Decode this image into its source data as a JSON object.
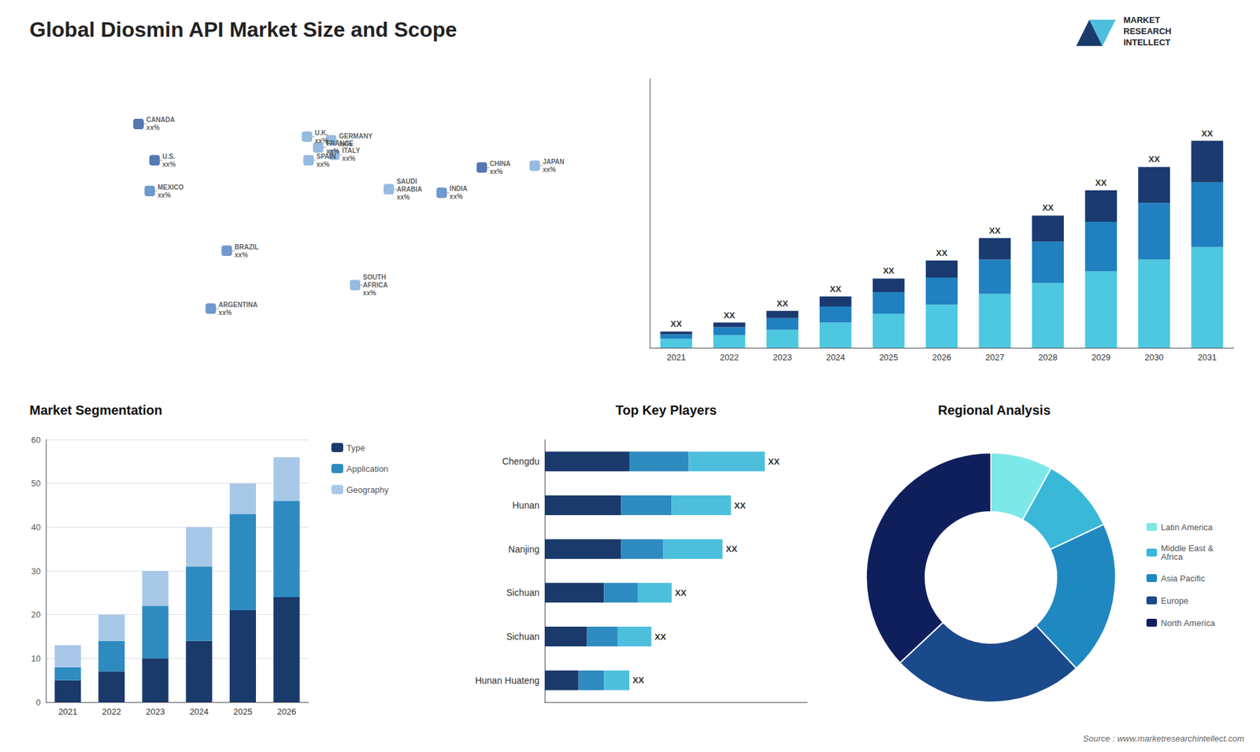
{
  "title": "Global Diosmin API Market Size and Scope",
  "annotations": [
    "MARKET",
    "RESEARCH",
    "INTELLECT",
    "Source : www.marketresearchintellect.com"
  ],
  "chart_data": [
    {
      "type": "map",
      "xlim": [
        -180,
        180
      ],
      "ylim": [
        -60,
        85
      ],
      "tick_labels": false,
      "annotations": [
        {
          "text": "CANADA\nxx%",
          "x": -110,
          "y": 60,
          "color": "#2a55a0"
        },
        {
          "text": "U.S.\nxx%",
          "x": -100,
          "y": 40,
          "color": "#2a55a0"
        },
        {
          "text": "MEXICO\nxx%",
          "x": -103,
          "y": 23,
          "color": "#4a80c0"
        },
        {
          "text": "BRAZIL\nxx%",
          "x": -55,
          "y": -10,
          "color": "#4a80c0"
        },
        {
          "text": "ARGENTINA\nxx%",
          "x": -65,
          "y": -42,
          "color": "#4a80c0"
        },
        {
          "text": "U.K.\nxx%",
          "x": -5,
          "y": 53,
          "color": "#7aaad8"
        },
        {
          "text": "FRANCE\nxx%",
          "x": 2,
          "y": 47,
          "color": "#7aaad8"
        },
        {
          "text": "SPAIN\nxx%",
          "x": -4,
          "y": 40,
          "color": "#7aaad8"
        },
        {
          "text": "GERMANY\nxx%",
          "x": 10,
          "y": 51,
          "color": "#7aaad8"
        },
        {
          "text": "ITALY\nxx%",
          "x": 12,
          "y": 43,
          "color": "#7aaad8"
        },
        {
          "text": "SAUDI\nARABIA\nxx%",
          "x": 46,
          "y": 24,
          "color": "#7aaad8"
        },
        {
          "text": "SOUTH\nAFRICA\nxx%",
          "x": 25,
          "y": -29,
          "color": "#7aaad8"
        },
        {
          "text": "CHINA\nxx%",
          "x": 104,
          "y": 36,
          "color": "#2a55a0"
        },
        {
          "text": "INDIA\nxx%",
          "x": 79,
          "y": 22,
          "color": "#4a80c0"
        },
        {
          "text": "JAPAN\nxx%",
          "x": 137,
          "y": 37,
          "color": "#7aaad8"
        }
      ]
    },
    {
      "type": "bar",
      "stacked": true,
      "categories": [
        "2021",
        "2022",
        "2023",
        "2024",
        "2025",
        "2026",
        "2027",
        "2028",
        "2029",
        "2030",
        "2031"
      ],
      "series": [
        {
          "color": "#4dc8e0",
          "values": [
            1.0,
            1.4,
            2.0,
            2.8,
            3.8,
            4.8,
            6.0,
            7.2,
            8.5,
            9.8,
            11.2
          ]
        },
        {
          "color": "#2080c0",
          "values": [
            0.5,
            0.9,
            1.3,
            1.8,
            2.4,
            3.0,
            3.8,
            4.6,
            5.5,
            6.3,
            7.2
          ]
        },
        {
          "color": "#1a3a70",
          "values": [
            0.3,
            0.5,
            0.8,
            1.1,
            1.5,
            1.9,
            2.4,
            2.9,
            3.5,
            4.0,
            4.6
          ]
        }
      ],
      "annotations": [
        "XX",
        "XX",
        "XX",
        "XX",
        "XX",
        "XX",
        "XX",
        "XX",
        "XX",
        "XX",
        "XX"
      ],
      "ylim": [
        0,
        29.9
      ],
      "tick_labels": "x",
      "grid": false
    },
    {
      "type": "bar",
      "title": "Market Segmentation",
      "stacked": true,
      "categories": [
        "2021",
        "2022",
        "2023",
        "2024",
        "2025",
        "2026"
      ],
      "series": [
        {
          "name": "Type",
          "color": "#1a3a6b",
          "values": [
            5,
            7,
            10,
            14,
            21,
            24
          ]
        },
        {
          "name": "Application",
          "color": "#2e8bc0",
          "values": [
            3,
            7,
            12,
            17,
            22,
            22
          ]
        },
        {
          "name": "Geography",
          "color": "#a8c8e8",
          "values": [
            5,
            6,
            8,
            9,
            7,
            10
          ]
        }
      ],
      "ylim": [
        0,
        60
      ],
      "yticks": [
        0,
        10,
        20,
        30,
        40,
        50,
        60
      ],
      "grid": true,
      "legend": "right"
    },
    {
      "type": "bar",
      "title": "Top Key Players",
      "orientation": "horizontal",
      "stacked": true,
      "categories": [
        "Chengdu",
        "Hunan",
        "Nanjing",
        "Sichuan",
        "Sichuan",
        "Hunan Huateng"
      ],
      "series": [
        {
          "color": "#1a3a6b",
          "values": [
            5,
            4.5,
            4.5,
            3.5,
            2.5,
            2.0
          ]
        },
        {
          "color": "#2e8bc0",
          "values": [
            3.5,
            3.0,
            2.5,
            2.0,
            1.8,
            1.5
          ]
        },
        {
          "color": "#4dbfdc",
          "values": [
            4.5,
            3.5,
            3.5,
            2.0,
            2.0,
            1.5
          ]
        }
      ],
      "annotations": [
        "XX",
        "XX",
        "XX",
        "XX",
        "XX",
        "XX"
      ],
      "xlim": [
        0,
        15.5
      ],
      "tick_labels": "y",
      "grid": false
    },
    {
      "type": "donut",
      "title": "Regional Analysis",
      "categories": [
        "Latin America",
        "Middle East &\nAfrica",
        "Asia Pacific",
        "Europe",
        "North America"
      ],
      "values": [
        8,
        10,
        20,
        25,
        37
      ],
      "colors": [
        "#7de8e8",
        "#3ab8d8",
        "#2088c0",
        "#1a4a8a",
        "#0f1f5c"
      ],
      "legend": "right"
    }
  ]
}
